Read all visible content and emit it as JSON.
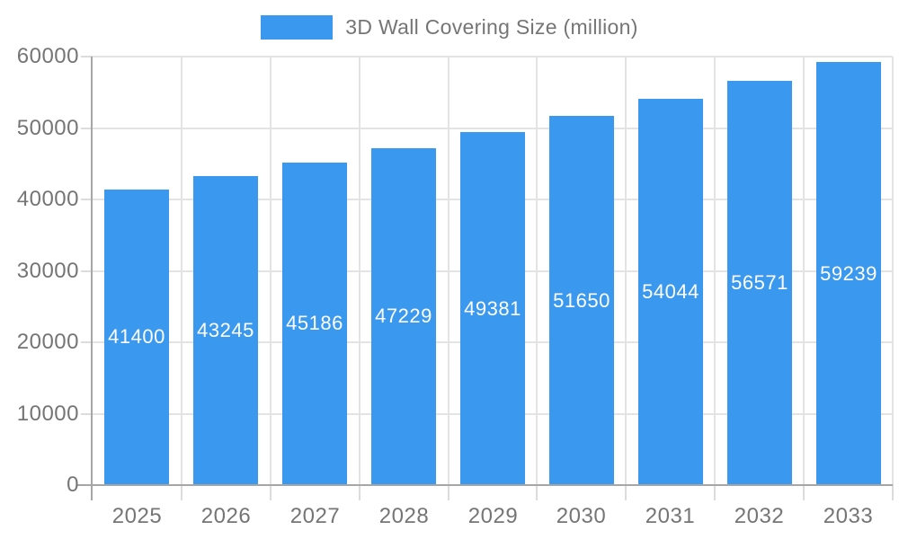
{
  "chart_data": {
    "type": "bar",
    "title": "3D Wall Covering Size (million)",
    "categories": [
      "2025",
      "2026",
      "2027",
      "2028",
      "2029",
      "2030",
      "2031",
      "2032",
      "2033"
    ],
    "values": [
      41400,
      43245,
      45186,
      47229,
      49381,
      51650,
      54044,
      56571,
      59239
    ],
    "xlabel": "",
    "ylabel": "",
    "ylim": [
      0,
      60000
    ],
    "y_ticks": [
      0,
      10000,
      20000,
      30000,
      40000,
      50000,
      60000
    ],
    "grid": true,
    "legend_position": "top-center",
    "value_labels": "inside-center",
    "colors": {
      "bar": "#3A99EE",
      "value_label_text": "#FFFFFF",
      "axis_text": "#757575",
      "gridline": "#E3E3E3",
      "tick": "#DCDCDC",
      "axis_line": "#A6A6A6",
      "background": "#FFFFFF"
    }
  }
}
